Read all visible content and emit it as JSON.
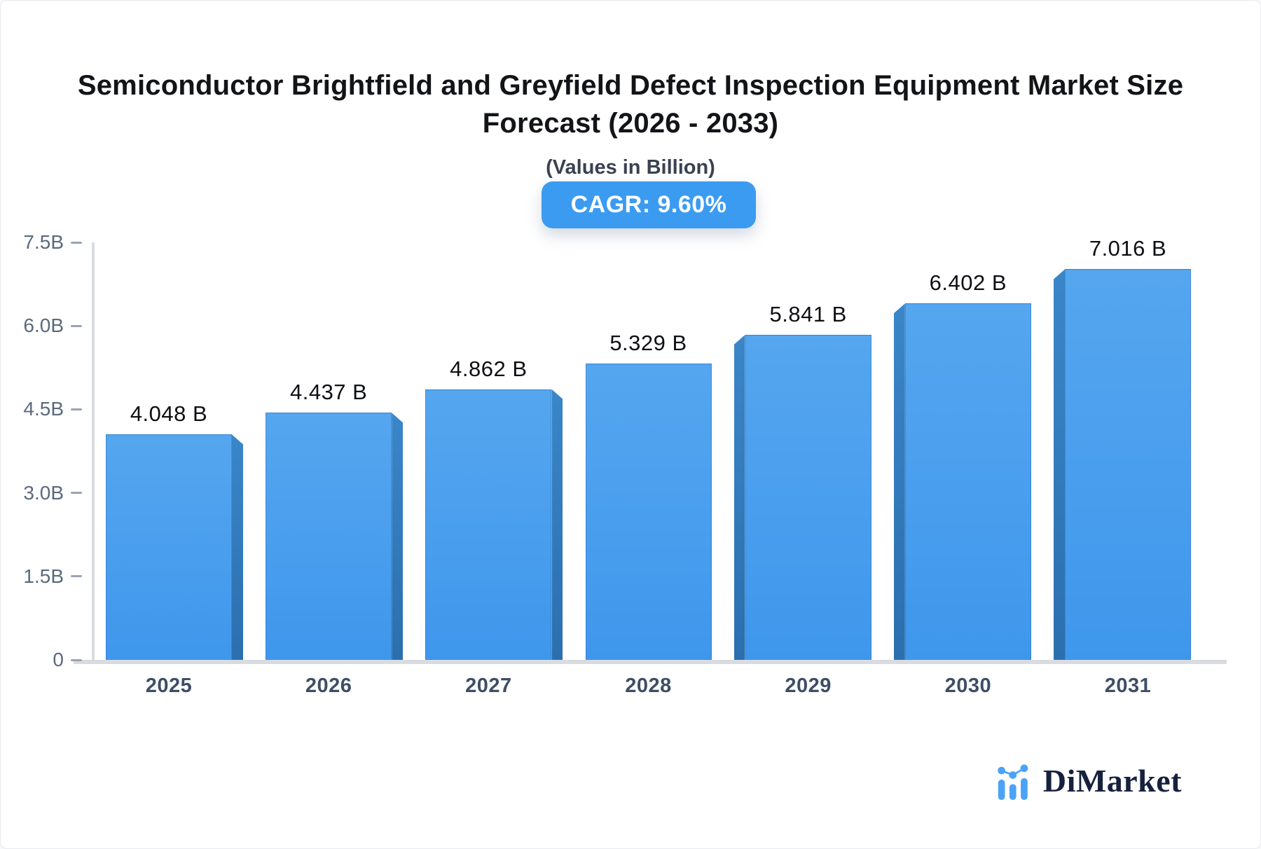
{
  "header": {
    "title_line1": "Semiconductor Brightfield and Greyfield Defect Inspection Equipment Market Size",
    "title_line2": "Forecast (2026 - 2033)",
    "subtitle": "(Values in Billion)",
    "cagr_label": "CAGR: 9.60%"
  },
  "chart_data": {
    "type": "bar",
    "title": "Semiconductor Brightfield and Greyfield Defect Inspection Equipment Market Size Forecast (2026 - 2033)",
    "subtitle": "(Values in Billion)",
    "cagr": "9.60%",
    "categories": [
      "2025",
      "2026",
      "2027",
      "2028",
      "2029",
      "2030",
      "2031"
    ],
    "values": [
      4.048,
      4.437,
      4.862,
      5.329,
      5.841,
      6.402,
      7.016
    ],
    "value_labels": [
      "4.048 B",
      "4.437 B",
      "4.862 B",
      "5.329 B",
      "5.841 B",
      "6.402 B",
      "7.016 B"
    ],
    "unit": "B",
    "xlabel": "",
    "ylabel": "",
    "ylim": [
      0,
      7.5
    ],
    "ytick_values": [
      0,
      1.5,
      3.0,
      4.5,
      6.0,
      7.5
    ],
    "ytick_labels": [
      "0",
      "1.5B",
      "3.0B",
      "4.5B",
      "6.0B",
      "7.5B"
    ],
    "grid": false,
    "legend": "none",
    "style": "3d-perspective-bars",
    "colors": {
      "bar_face_top": "#55a6ef",
      "bar_face_bottom": "#3f97ec",
      "bar_face_edge": "rgba(23, 90, 155, 0.30)",
      "bar_side_light": "#3a86c9",
      "bar_side_dark": "#2b6fae",
      "axis_line": "#d8dce1",
      "tick_dash": "#9aa4b0",
      "tick_label": "#5a6a7e",
      "x_label": "#3e4e66",
      "value_label": "#0d0f13",
      "badge_bg": "#3b9bf1",
      "badge_text": "#ffffff"
    }
  },
  "footer": {
    "brand": "DiMarket",
    "logo_icon": "bar-chart-logo-icon"
  }
}
